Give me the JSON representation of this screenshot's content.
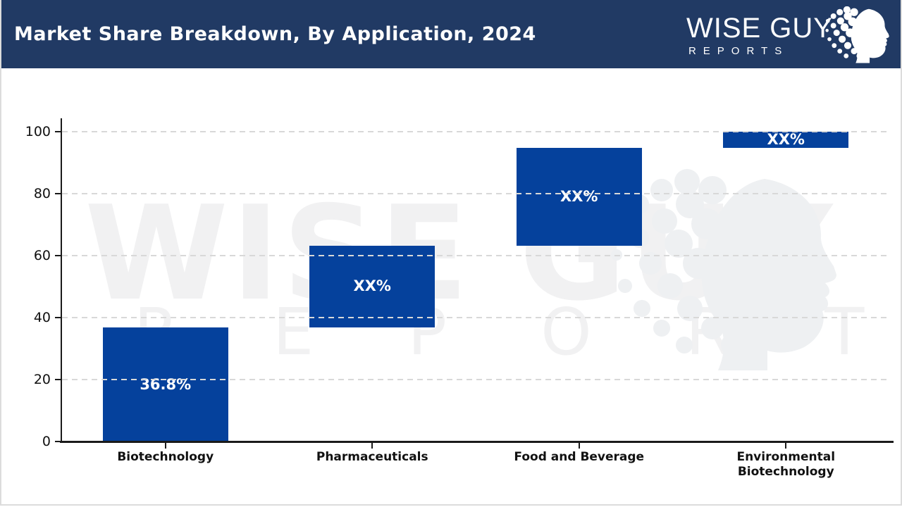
{
  "header": {
    "title": "Market Share Breakdown, By Application, 2024",
    "logo": {
      "line1": "WISE GUY",
      "line2": "REPORTS"
    }
  },
  "watermark": {
    "line1": "WISE GUY",
    "line2": "R E P O R T S"
  },
  "colors": {
    "header_bg": "#213a64",
    "bar_blue": "#05419c",
    "grid_gray": "#d8d8d8",
    "axis_black": "#1a1a1a",
    "bar_label_white": "#ffffff",
    "frame_gray": "#dcdcdc"
  },
  "chart_data": {
    "type": "bar",
    "subtype": "waterfall-stacked-percentage",
    "title": "Market Share Breakdown, By Application, 2024",
    "categories": [
      "Biotechnology",
      "Pharmaceuticals",
      "Food and Beverage",
      "Environmental Biotechnology"
    ],
    "segments": [
      {
        "category": "Biotechnology",
        "start": 0,
        "end": 36.8,
        "label": "36.8%"
      },
      {
        "category": "Pharmaceuticals",
        "start": 36.8,
        "end": 63.2,
        "label": "XX%"
      },
      {
        "category": "Food and Beverage",
        "start": 63.2,
        "end": 94.8,
        "label": "XX%"
      },
      {
        "category": "Environmental Biotechnology",
        "start": 94.8,
        "end": 100,
        "label": "XX%"
      }
    ],
    "yticks": [
      0,
      20,
      40,
      60,
      80,
      100
    ],
    "ylim": [
      0,
      105
    ],
    "xlabel": "",
    "ylabel": "",
    "grid": "horizontal-dashed-above-bars",
    "legend": "none"
  }
}
